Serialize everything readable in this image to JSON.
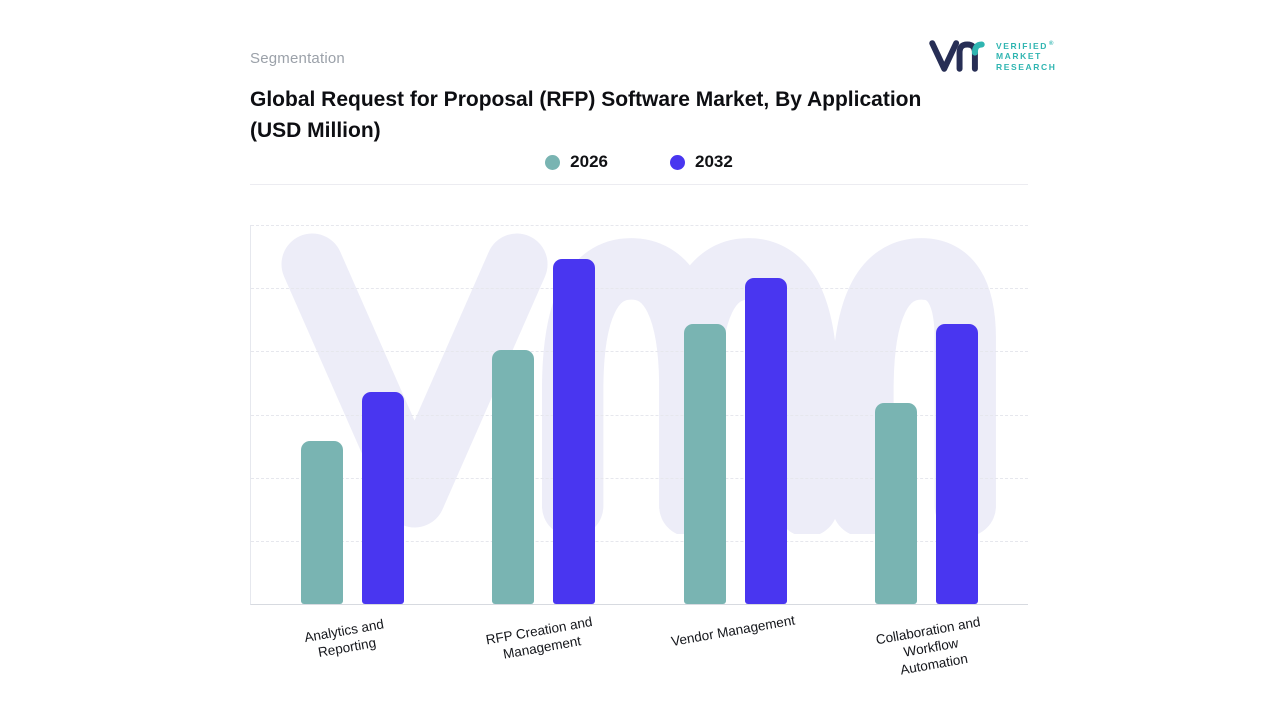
{
  "header": {
    "section_label": "Segmentation",
    "logo": {
      "lines": [
        "VERIFIED",
        "MARKET",
        "RESEARCH"
      ],
      "registered_mark": "®"
    }
  },
  "title": {
    "line1": "Global Request for Proposal (RFP) Software Market, By Application",
    "line2": "(USD Million)"
  },
  "chart_data": {
    "type": "bar",
    "title": "Global Request for Proposal (RFP) Software Market, By Application (USD Million)",
    "categories": [
      "Analytics and Reporting",
      "RFP Creation and Management",
      "Vendor Management",
      "Collaboration and Workflow Automation"
    ],
    "category_label_lines": [
      [
        "Analytics and",
        "Reporting"
      ],
      [
        "RFP Creation and",
        "Management"
      ],
      [
        "Vendor Management"
      ],
      [
        "Collaboration and",
        "Workflow",
        "Automation"
      ]
    ],
    "series": [
      {
        "name": "2026",
        "color": "#79b4b2",
        "values": [
          43,
          67,
          74,
          53
        ]
      },
      {
        "name": "2032",
        "color": "#4936f0",
        "values": [
          56,
          91,
          86,
          74
        ]
      }
    ],
    "ylim": [
      0,
      100
    ],
    "xlabel": "",
    "ylabel": "",
    "grid": "dashed horizontal",
    "legend_position": "top-center"
  },
  "colors": {
    "teal": "#79b4b2",
    "indigo": "#4936f0",
    "watermark": "#ededf8",
    "gridline": "#e6e7ed",
    "axis": "#d7dae0",
    "muted_text": "#9ba1a9",
    "logo_navy": "#272e55",
    "logo_teal": "#2fb5b1"
  }
}
